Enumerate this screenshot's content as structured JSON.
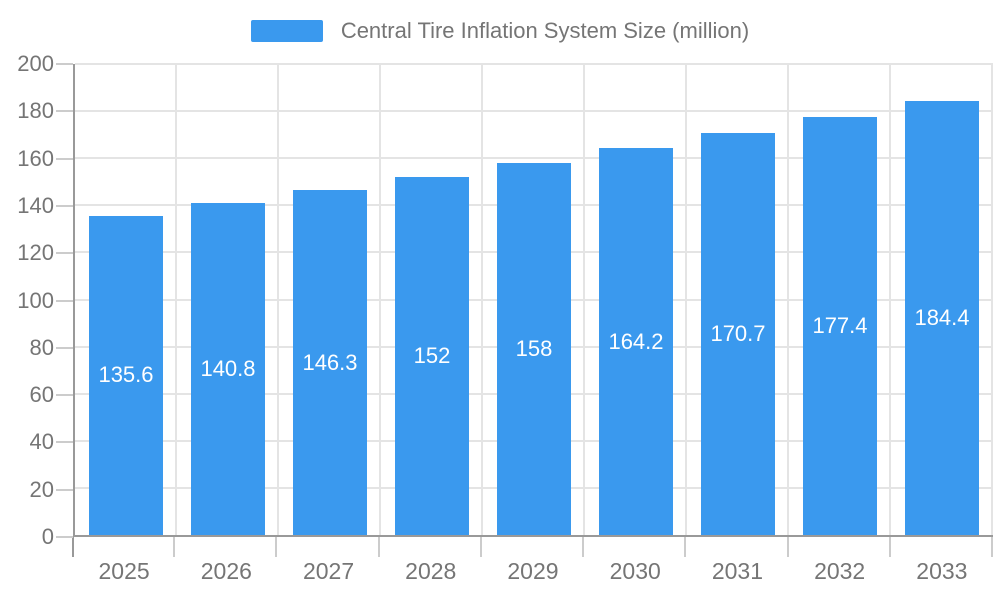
{
  "legend": {
    "label": "Central Tire Inflation System Size (million)"
  },
  "chart_data": {
    "type": "bar",
    "title": "Central Tire Inflation System Size (million)",
    "categories": [
      "2025",
      "2026",
      "2027",
      "2028",
      "2029",
      "2030",
      "2031",
      "2032",
      "2033"
    ],
    "series": [
      {
        "name": "Central Tire Inflation System Size (million)",
        "values": [
          135.6,
          140.8,
          146.3,
          152,
          158,
          164.2,
          170.7,
          177.4,
          184.4
        ],
        "value_labels": [
          "135.6",
          "140.8",
          "146.3",
          "152",
          "158",
          "164.2",
          "170.7",
          "177.4",
          "184.4"
        ]
      }
    ],
    "xlabel": "",
    "ylabel": "",
    "ylim": [
      0,
      200
    ],
    "y_ticks": [
      "0",
      "20",
      "40",
      "60",
      "80",
      "100",
      "120",
      "140",
      "160",
      "180",
      "200"
    ],
    "grid": true,
    "legend_position": "top-center",
    "bar_label_position": "inside-center"
  },
  "colors": {
    "bar_fill": "#3a99ee",
    "bar_label": "#ffffff",
    "axis_text": "#757575",
    "legend_text": "#757575",
    "axis_line": "#999999",
    "grid_line": "#e4e4e4",
    "tick_line": "#cccccc",
    "background": "#ffffff"
  }
}
